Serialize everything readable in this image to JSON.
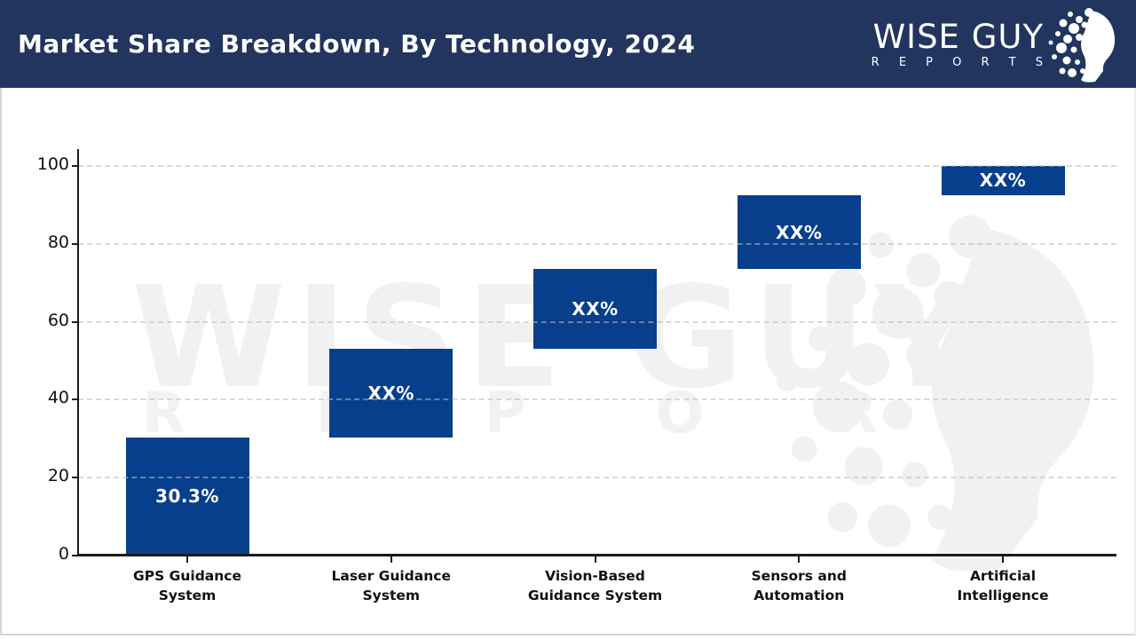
{
  "header": {
    "title": "Market Share Breakdown, By Technology, 2024",
    "logo": {
      "line1": "WISE GUY",
      "line2": "R E P O R T S"
    }
  },
  "watermark": {
    "line1": "WISE GUY",
    "line2": "R E P O R T S"
  },
  "colors": {
    "header_bg": "#21355E",
    "bar": "#083F8C",
    "title_text": "#FFFFFF",
    "axis": "#1A1A1A",
    "gridline": "#D9D9D9",
    "watermark": "#F1F1F3",
    "bar_label_text": "#FFFFFF"
  },
  "chart_data": {
    "type": "bar",
    "subtype": "floating-waterfall",
    "title": "Market Share Breakdown, By Technology, 2024",
    "categories": [
      "GPS Guidance\nSystem",
      "Laser Guidance\nSystem",
      "Vision-Based\nGuidance System",
      "Sensors and\nAutomation",
      "Artificial\nIntelligence"
    ],
    "series": [
      {
        "name": "Market Share",
        "segments": [
          {
            "category": "GPS Guidance System",
            "start": 0,
            "end": 30.3,
            "label": "30.3%"
          },
          {
            "category": "Laser Guidance System",
            "start": 30.3,
            "end": 53,
            "label": "XX%"
          },
          {
            "category": "Vision-Based Guidance System",
            "start": 53,
            "end": 73.5,
            "label": "XX%"
          },
          {
            "category": "Sensors and Automation",
            "start": 73.5,
            "end": 92.5,
            "label": "XX%"
          },
          {
            "category": "Artificial Intelligence",
            "start": 92.5,
            "end": 100,
            "label": "XX%"
          }
        ]
      }
    ],
    "xlabel": "",
    "ylabel": "",
    "ylim": [
      0,
      100
    ],
    "yticks": [
      0,
      20,
      40,
      60,
      80,
      100
    ],
    "grid": "horizontal-dashed-over-bars",
    "legend": "none"
  }
}
